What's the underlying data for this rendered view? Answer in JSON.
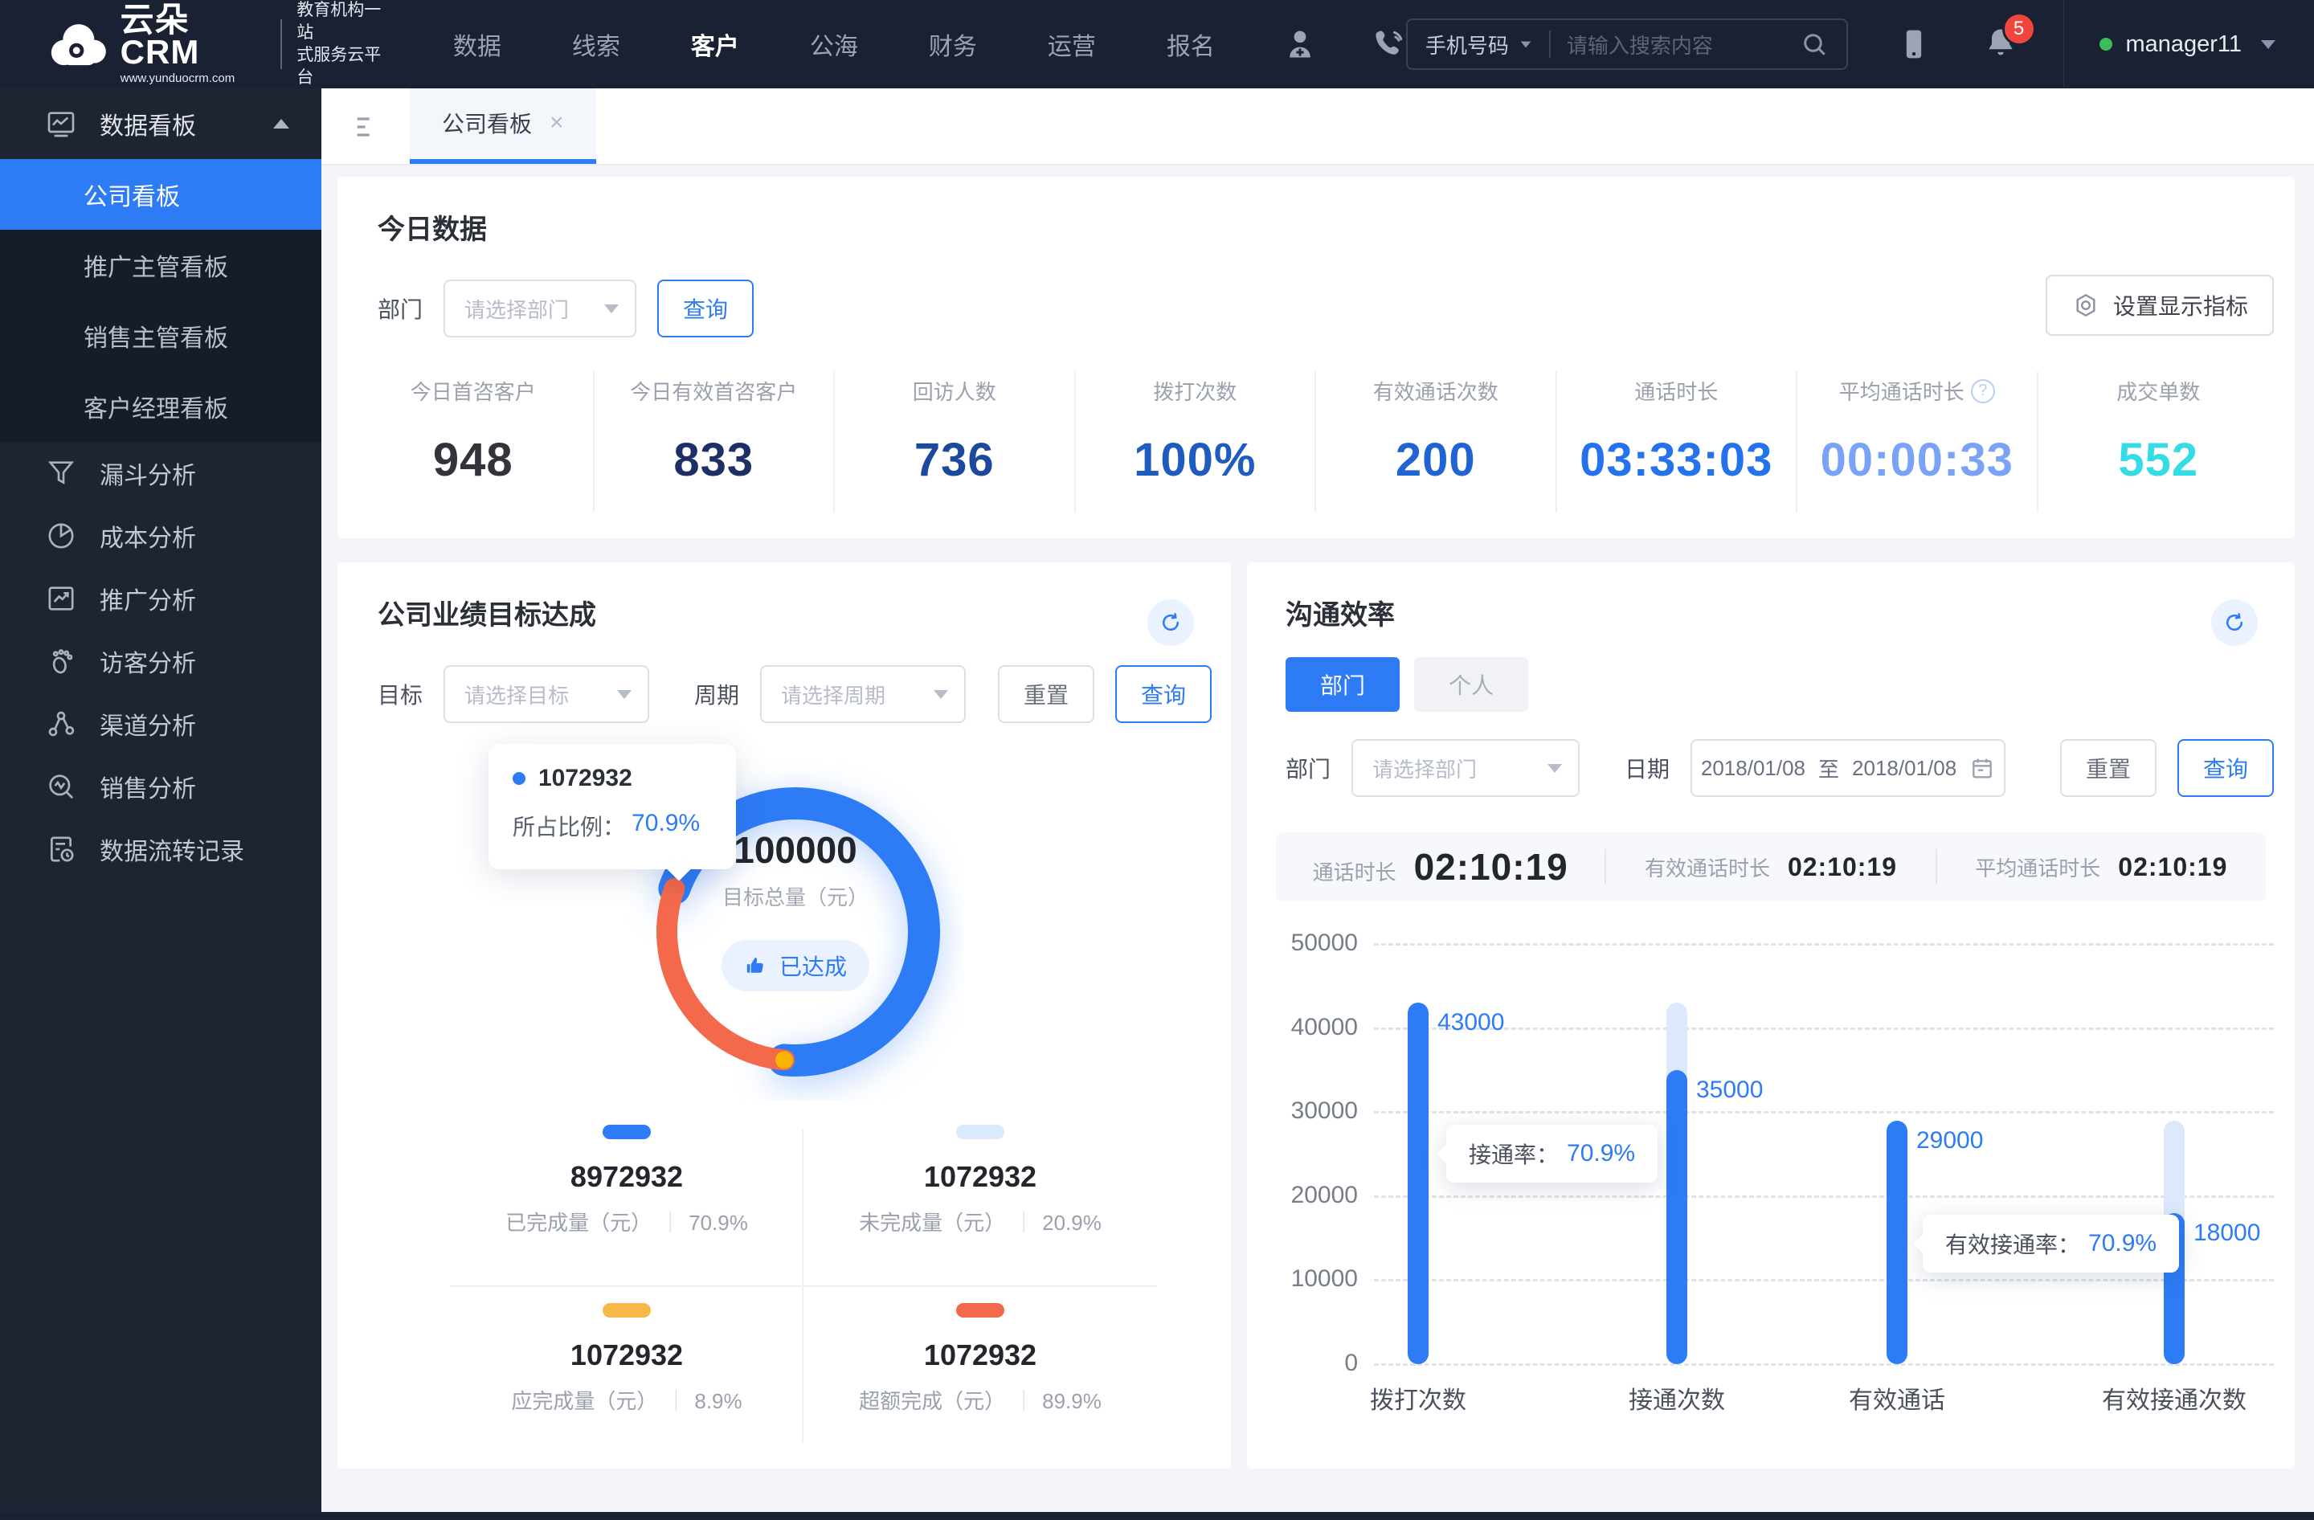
{
  "header": {
    "brand": {
      "name": "云朵CRM",
      "site": "www.yunduocrm.com",
      "tagline1": "教育机构一站",
      "tagline2": "式服务云平台"
    },
    "nav": [
      {
        "label": "数据",
        "active": false
      },
      {
        "label": "线索",
        "active": false
      },
      {
        "label": "客户",
        "active": true
      },
      {
        "label": "公海",
        "active": false
      },
      {
        "label": "财务",
        "active": false
      },
      {
        "label": "运营",
        "active": false
      },
      {
        "label": "报名",
        "active": false
      }
    ],
    "search": {
      "category": "手机号码",
      "placeholder": "请输入搜索内容"
    },
    "badge_count": "5",
    "username": "manager11"
  },
  "sidebar": {
    "section_label": "数据看板",
    "submenu": [
      {
        "label": "公司看板",
        "active": true
      },
      {
        "label": "推广主管看板",
        "active": false
      },
      {
        "label": "销售主管看板",
        "active": false
      },
      {
        "label": "客户经理看板",
        "active": false
      }
    ],
    "items": [
      {
        "label": "漏斗分析"
      },
      {
        "label": "成本分析"
      },
      {
        "label": "推广分析"
      },
      {
        "label": "访客分析"
      },
      {
        "label": "渠道分析"
      },
      {
        "label": "销售分析"
      },
      {
        "label": "数据流转记录"
      }
    ]
  },
  "tabs": {
    "active": "公司看板"
  },
  "today": {
    "title": "今日数据",
    "dept_label": "部门",
    "dept_placeholder": "请选择部门",
    "query": "查询",
    "settings": "设置显示指标",
    "stats": [
      {
        "label": "今日首咨客户",
        "value": "948",
        "color": "#32343c"
      },
      {
        "label": "今日有效首咨客户",
        "value": "833",
        "color": "#1d2f66"
      },
      {
        "label": "回访人数",
        "value": "736",
        "color": "#1c499c"
      },
      {
        "label": "拨打次数",
        "value": "100%",
        "color": "#1e5cc0"
      },
      {
        "label": "有效通话次数",
        "value": "200",
        "color": "#2063d2"
      },
      {
        "label": "通话时长",
        "value": "03:33:03",
        "color": "#2472ec"
      },
      {
        "label": "平均通话时长",
        "value": "00:00:33",
        "color": "#7aa3f7",
        "info": "?"
      },
      {
        "label": "成交单数",
        "value": "552",
        "color": "#35dbe5"
      }
    ]
  },
  "goal": {
    "title": "公司业绩目标达成",
    "target_label": "目标",
    "target_placeholder": "请选择目标",
    "period_label": "周期",
    "period_placeholder": "请选择周期",
    "reset": "重置",
    "query": "查询",
    "tooltip": {
      "value": "1072932",
      "label": "所占比例：",
      "percent": "70.9%"
    },
    "donut": {
      "percent_blue": 70.9,
      "center_value": "100000",
      "center_label": "目标总量（元）",
      "badge": "已达成",
      "blue": "#2e7bf6",
      "orange": "#f4694c",
      "dot": "#f8b500"
    },
    "quadrants": [
      {
        "color": "#2e7bf6",
        "value": "8972932",
        "label": "已完成量（元）",
        "percent": "70.9%"
      },
      {
        "color": "#dbe9fd",
        "value": "1072932",
        "label": "未完成量（元）",
        "percent": "20.9%"
      },
      {
        "color": "#f8b84a",
        "value": "1072932",
        "label": "应完成量（元）",
        "percent": "8.9%"
      },
      {
        "color": "#f4694c",
        "value": "1072932",
        "label": "超额完成（元）",
        "percent": "89.9%"
      }
    ]
  },
  "comm": {
    "title": "沟通效率",
    "toggle_dept": "部门",
    "toggle_personal": "个人",
    "dept_label": "部门",
    "dept_placeholder": "请选择部门",
    "date_label": "日期",
    "date_from": "2018/01/08",
    "date_sep": "至",
    "date_to": "2018/01/08",
    "reset": "重置",
    "query": "查询",
    "kpis": [
      {
        "label": "通话时长",
        "value": "02:10:19"
      },
      {
        "label": "有效通话时长",
        "value": "02:10:19"
      },
      {
        "label": "平均通话时长",
        "value": "02:10:19"
      }
    ]
  },
  "chart_data": {
    "type": "bar",
    "title": "沟通效率",
    "categories": [
      "拨打次数",
      "接通次数",
      "有效通话",
      "有效接通次数"
    ],
    "values": [
      43000,
      35000,
      29000,
      18000
    ],
    "tracks": [
      null,
      43000,
      null,
      29000
    ],
    "value_labels": [
      "43000",
      "35000",
      "29000",
      "18000"
    ],
    "ylim": [
      0,
      50000
    ],
    "yticks": [
      50000,
      40000,
      30000,
      20000,
      10000,
      0
    ],
    "grid": "dashed",
    "bar_color": "#2e7bf6",
    "track_color": "#dce9fc",
    "tooltips": [
      {
        "label": "接通率：",
        "value": "70.9%"
      },
      {
        "label": "有效接通率：",
        "value": "70.9%"
      }
    ]
  }
}
